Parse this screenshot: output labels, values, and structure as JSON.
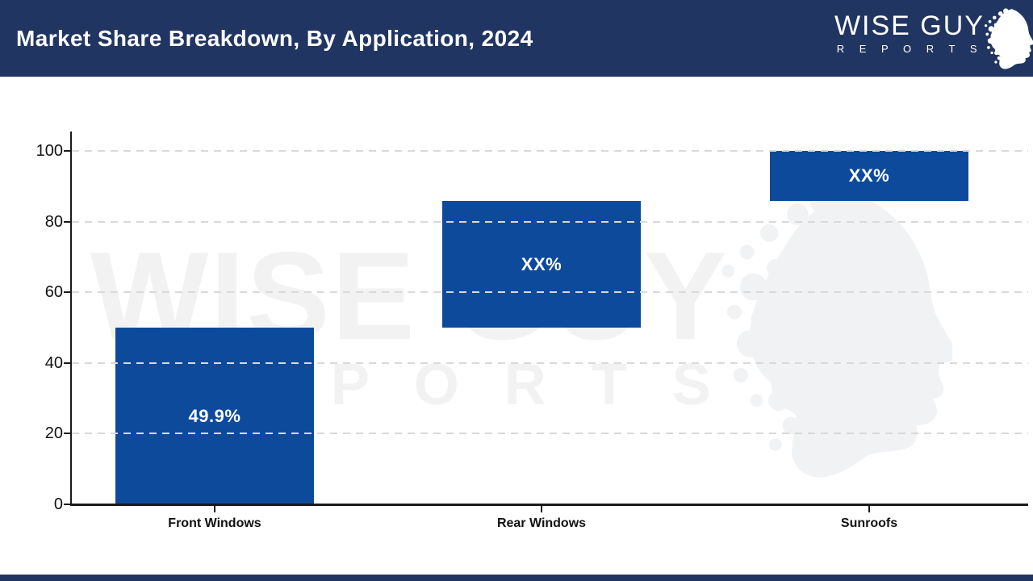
{
  "header": {
    "title": "Market Share Breakdown, By Application, 2024",
    "bg_color": "#203561",
    "logo": {
      "line1": "WISE GUY",
      "line2": "R E P O R T S"
    }
  },
  "chart_data": {
    "type": "bar",
    "variant": "stacked-waterfall",
    "title": "Market Share Breakdown, By Application, 2024",
    "categories": [
      "Front Windows",
      "Rear Windows",
      "Sunroofs"
    ],
    "bars": [
      {
        "category": "Front Windows",
        "start": 0,
        "end": 49.9,
        "label": "49.9%"
      },
      {
        "category": "Rear Windows",
        "start": 49.9,
        "end": 85.9,
        "label": "XX%"
      },
      {
        "category": "Sunroofs",
        "start": 85.9,
        "end": 100,
        "label": "XX%"
      }
    ],
    "ylim": [
      0,
      100
    ],
    "yticks": [
      0,
      20,
      40,
      60,
      80,
      100
    ],
    "xlabel": "",
    "ylabel": "",
    "legend": "none",
    "grid": "horizontal-dashed",
    "gridline_color": "#d9d9d9",
    "bar_color": "#0d4a9c",
    "bar_label_color": "#ffffff"
  },
  "watermark": {
    "line1": "WISE GUY",
    "line2": "R E P O R T S"
  },
  "footer": {
    "bar_color": "#203561"
  }
}
